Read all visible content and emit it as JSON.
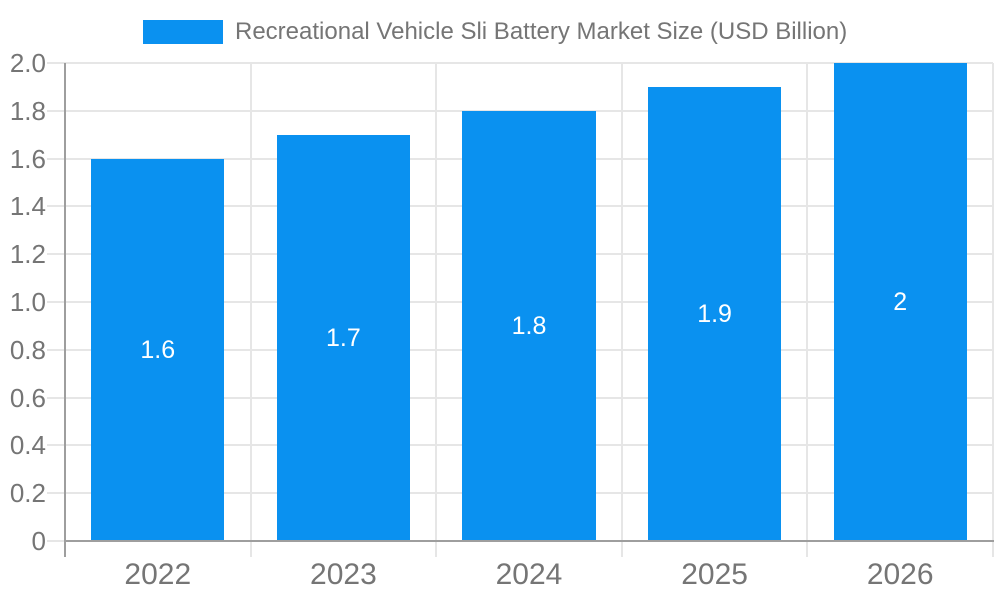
{
  "chart_data": {
    "type": "bar",
    "legend_label": "Recreational Vehicle Sli Battery Market Size (USD Billion)",
    "legend_position": "top",
    "categories": [
      "2022",
      "2023",
      "2024",
      "2025",
      "2026"
    ],
    "values": [
      1.6,
      1.7,
      1.8,
      1.9,
      2
    ],
    "value_labels": [
      "1.6",
      "1.7",
      "1.8",
      "1.9",
      "2"
    ],
    "xlabel": "",
    "ylabel": "",
    "ylim": [
      0,
      2
    ],
    "grid": true,
    "yticks": [
      {
        "value": 0,
        "label": "0"
      },
      {
        "value": 0.2,
        "label": "0.2"
      },
      {
        "value": 0.4,
        "label": "0.4"
      },
      {
        "value": 0.6,
        "label": "0.6"
      },
      {
        "value": 0.8,
        "label": "0.8"
      },
      {
        "value": 1.0,
        "label": "1.0"
      },
      {
        "value": 1.2,
        "label": "1.2"
      },
      {
        "value": 1.4,
        "label": "1.4"
      },
      {
        "value": 1.6,
        "label": "1.6"
      },
      {
        "value": 1.8,
        "label": "1.8"
      },
      {
        "value": 2.0,
        "label": "2.0"
      }
    ],
    "colors": {
      "bar": "#0a91f0",
      "grid": "#e6e6e6",
      "axis": "#9e9e9e",
      "tick_text": "#757575",
      "value_text": "#ffffff",
      "background": "#ffffff"
    }
  }
}
